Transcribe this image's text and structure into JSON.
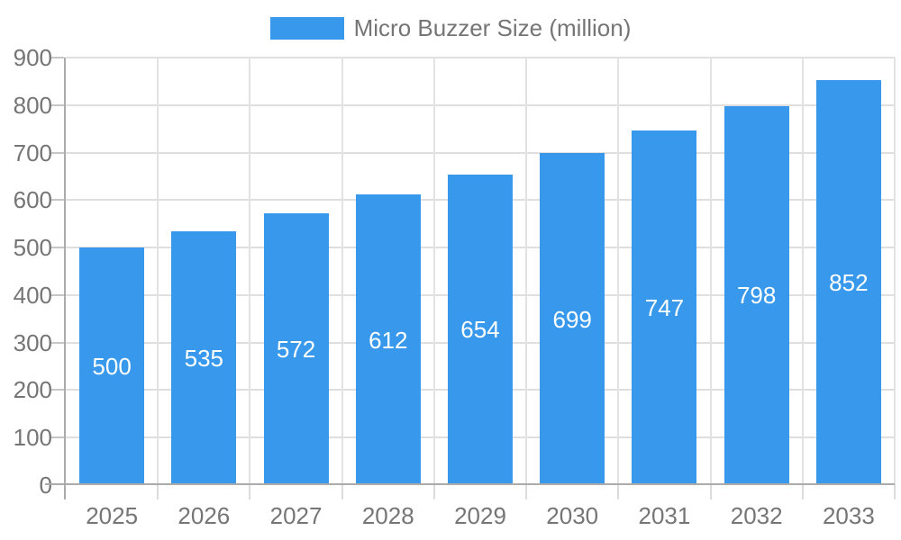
{
  "chart_data": {
    "type": "bar",
    "title": "Micro Buzzer Size (million)",
    "legend_label": "Micro Buzzer Size (million)",
    "legend_position": "top-center",
    "categories": [
      "2025",
      "2026",
      "2027",
      "2028",
      "2029",
      "2030",
      "2031",
      "2032",
      "2033"
    ],
    "values": [
      500,
      535,
      572,
      612,
      654,
      699,
      747,
      798,
      852
    ],
    "series": [
      {
        "name": "Micro Buzzer Size (million)",
        "values": [
          500,
          535,
          572,
          612,
          654,
          699,
          747,
          798,
          852
        ]
      }
    ],
    "xlabel": "",
    "ylabel": "",
    "ylim": [
      0,
      900
    ],
    "yticks": [
      0,
      100,
      200,
      300,
      400,
      500,
      600,
      700,
      800,
      900
    ],
    "grid": true,
    "value_labels_position": "inside-center"
  },
  "style": {
    "bar_color": "#3899EC",
    "text_color": "#757575",
    "value_label_color": "#FFFFFF",
    "gridline_color": "#DFDFDF",
    "vertical_gridline_color": "#E2E2E2",
    "axis_color": "#ABABAB",
    "y_tick_color": "#C6C6C6",
    "x_tick_color": "#DCDCDC",
    "background": "#FFFFFF"
  }
}
